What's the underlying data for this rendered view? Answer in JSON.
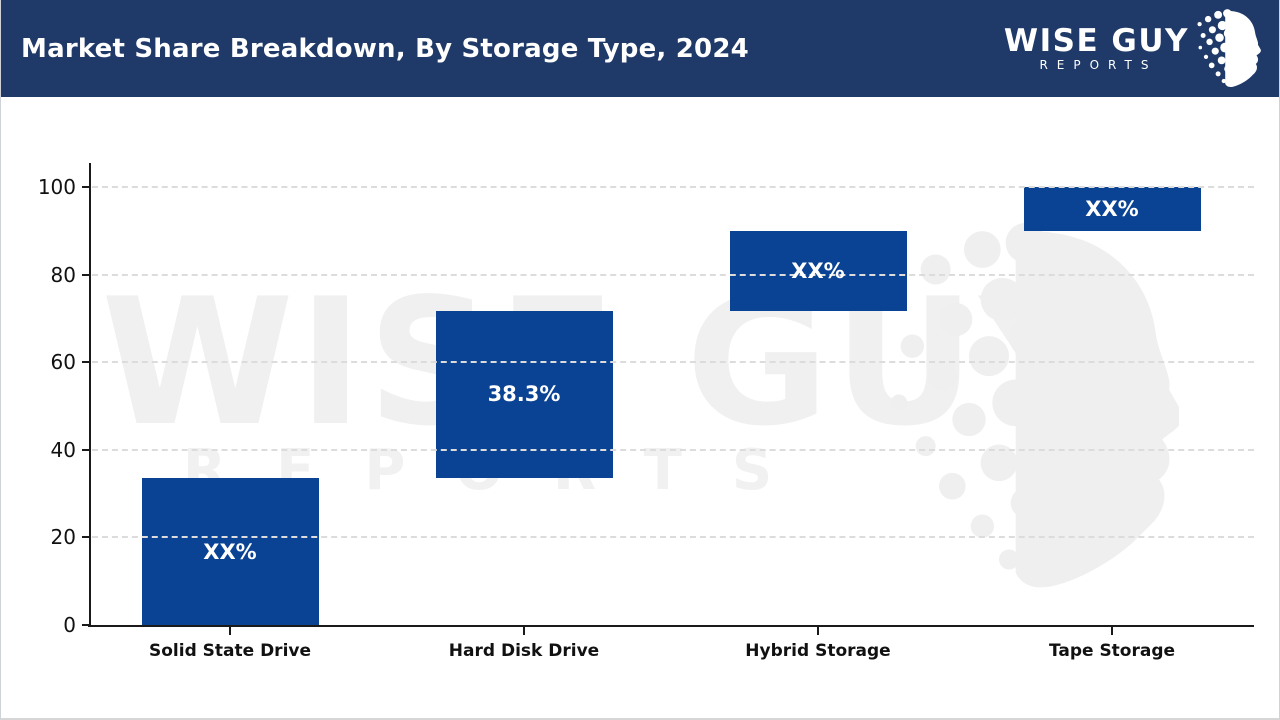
{
  "header": {
    "title": "Market Share Breakdown, By Storage Type, 2024",
    "logo": {
      "line1": "WISE GUY",
      "line2": "REPORTS"
    }
  },
  "watermark": {
    "line1": "WISE GUY",
    "line2": "REPORTS"
  },
  "chart_data": {
    "type": "bar",
    "subtype": "waterfall-floating-bars",
    "title": "Market Share Breakdown, By Storage Type, 2024",
    "categories": [
      "Solid State Drive",
      "Hard Disk Drive",
      "Hybrid Storage",
      "Tape Storage"
    ],
    "segments": [
      {
        "category": "Solid State Drive",
        "start": 0,
        "end": 33.5,
        "label": "XX%"
      },
      {
        "category": "Hard Disk Drive",
        "start": 33.5,
        "end": 71.8,
        "label": "38.3%"
      },
      {
        "category": "Hybrid Storage",
        "start": 71.8,
        "end": 90,
        "label": "XX%"
      },
      {
        "category": "Tape Storage",
        "start": 90,
        "end": 100,
        "label": "XX%"
      }
    ],
    "xlabel": "",
    "ylabel": "",
    "ylim": [
      0,
      100
    ],
    "yticks": [
      0,
      20,
      40,
      60,
      80,
      100
    ],
    "grid": "horizontal dashed, drawn over bars",
    "legend": "none",
    "bar_color": "#0a4294",
    "bar_label_color": "#ffffff"
  },
  "colors": {
    "header_bg": "#1f3a68",
    "bar": "#0a4294",
    "gridline": "#dcdcdc",
    "axis": "#1a1a1a",
    "watermark": "#f0f0f0"
  }
}
